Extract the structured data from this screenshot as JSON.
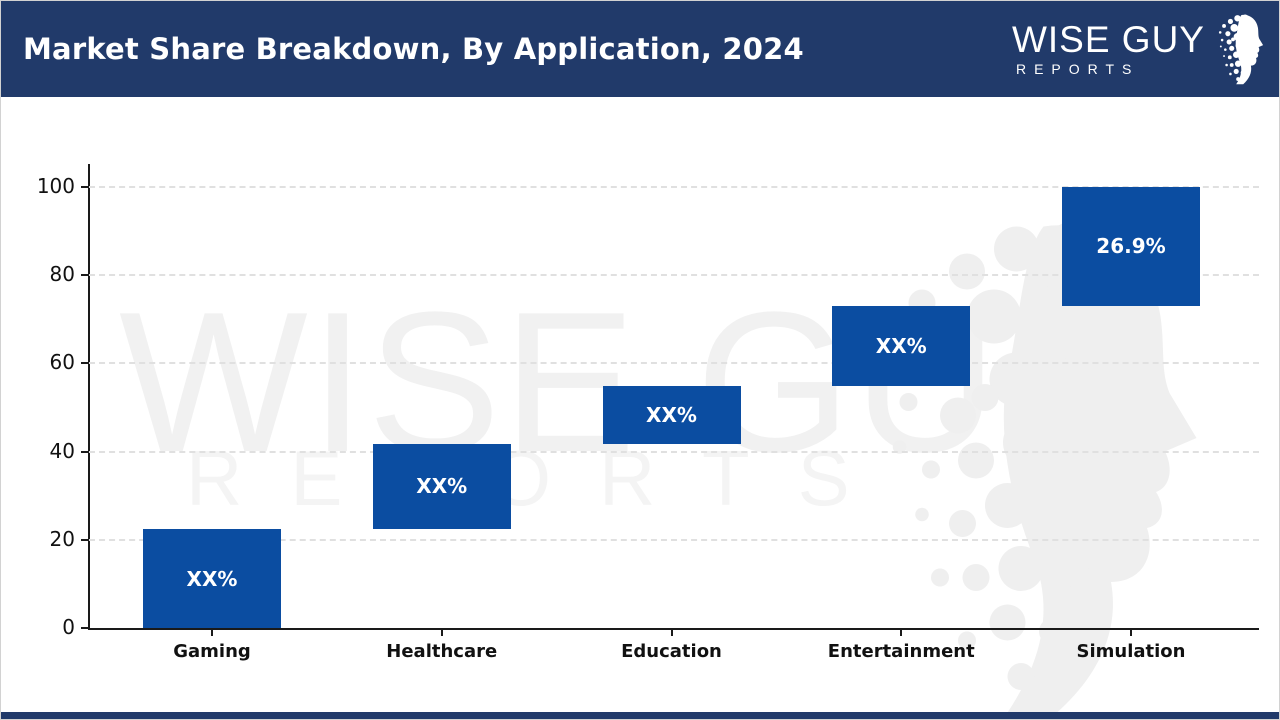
{
  "header": {
    "title": "Market Share Breakdown, By Application, 2024",
    "background_color": "#213a6a",
    "logo": {
      "primary": "WISE GUY",
      "secondary": "REPORTS"
    }
  },
  "watermark": {
    "primary": "WISE GUY",
    "secondary": "REPORTS"
  },
  "chart_data": {
    "type": "bar",
    "variant": "waterfall",
    "title": "Market Share Breakdown, By Application, 2024",
    "categories": [
      "Gaming",
      "Healthcare",
      "Education",
      "Entertainment",
      "Simulation"
    ],
    "segments": [
      {
        "category": "Gaming",
        "start": 0,
        "end": 22.4,
        "label": "XX%"
      },
      {
        "category": "Healthcare",
        "start": 22.4,
        "end": 41.8,
        "label": "XX%"
      },
      {
        "category": "Education",
        "start": 41.8,
        "end": 54.9,
        "label": "XX%"
      },
      {
        "category": "Entertainment",
        "start": 54.9,
        "end": 73.1,
        "label": "XX%"
      },
      {
        "category": "Simulation",
        "start": 73.1,
        "end": 100,
        "label": "26.9%"
      }
    ],
    "xlabel": "",
    "ylabel": "",
    "ylim": [
      0,
      100
    ],
    "yticks": [
      0,
      20,
      40,
      60,
      80,
      100
    ],
    "grid": "horizontal-dashed",
    "legend": "none",
    "bar_color": "#0b4da1",
    "bar_label_color": "#ffffff"
  },
  "footer": {
    "background_color": "#213a6a"
  }
}
